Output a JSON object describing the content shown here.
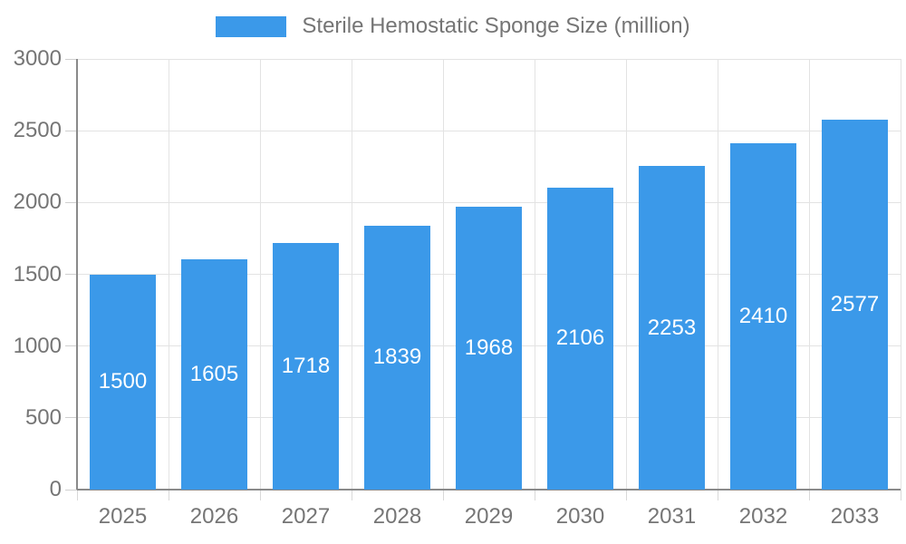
{
  "legend": {
    "items": [
      {
        "label": "Sterile Hemostatic Sponge Size (million)",
        "color": "#3B99E9"
      }
    ]
  },
  "chart_data": {
    "type": "bar",
    "title": "Sterile Hemostatic Sponge Size (million)",
    "categories": [
      "2025",
      "2026",
      "2027",
      "2028",
      "2029",
      "2030",
      "2031",
      "2032",
      "2033"
    ],
    "values": [
      1500,
      1605,
      1718,
      1839,
      1968,
      2106,
      2253,
      2410,
      2577
    ],
    "xlabel": "",
    "ylabel": "",
    "ylim": [
      0,
      3000
    ],
    "yticks": [
      0,
      500,
      1000,
      1500,
      2000,
      2500,
      3000
    ],
    "grid": true,
    "legend_position": "top",
    "bar_color": "#3B99E9",
    "value_label_color": "#FFFFFF",
    "axis_text_color": "#757575"
  },
  "colors": {
    "background": "#FFFFFF",
    "grid": "#E3E3E3",
    "axis": "#8A8A8A",
    "tick_y": "#CFCFCF",
    "tick_x": "#D9D9D9"
  }
}
